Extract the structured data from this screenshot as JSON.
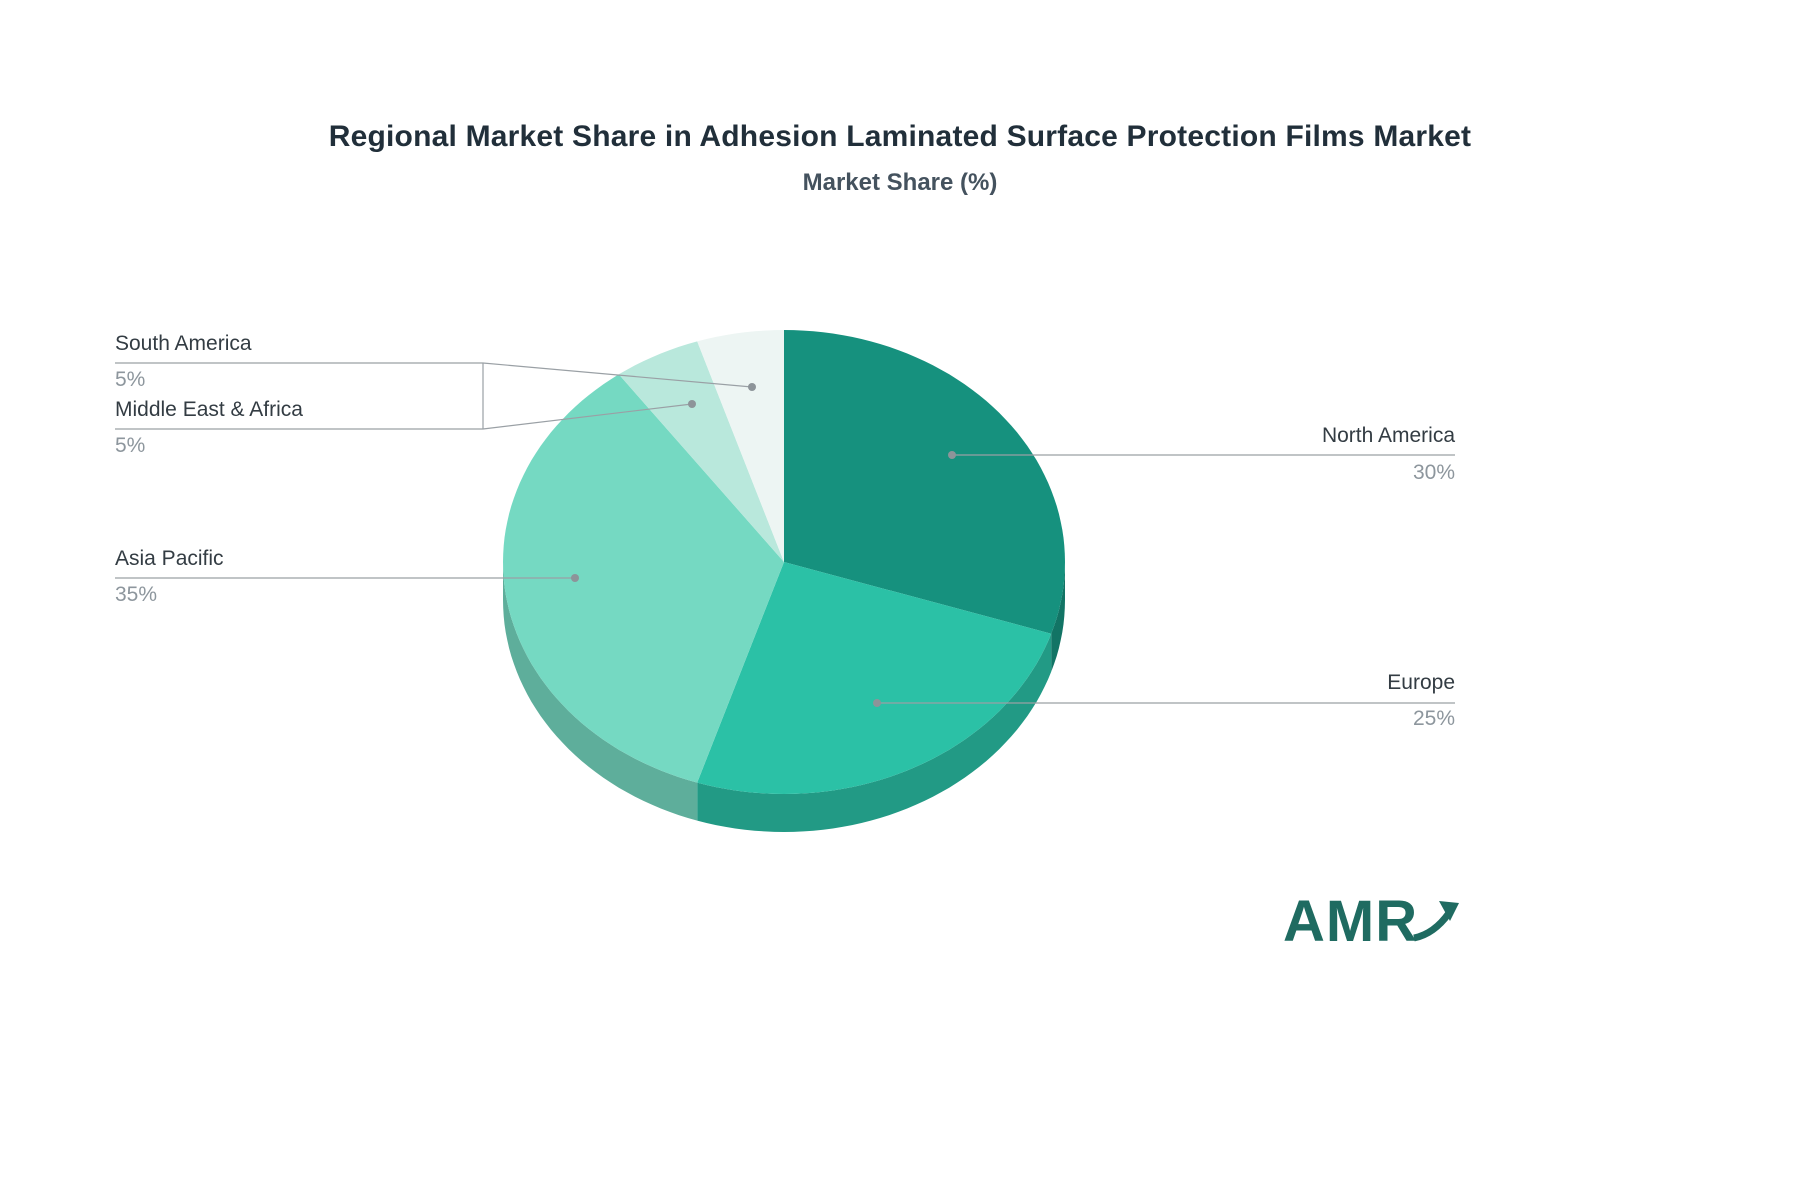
{
  "title": "Regional Market Share in Adhesion Laminated Surface Protection Films Market",
  "subtitle": "Market Share (%)",
  "logo": {
    "text": "AMR",
    "color": "#1f6b61"
  },
  "chart_data": {
    "type": "pie",
    "style": "3d",
    "title": "Regional Market Share in Adhesion Laminated Surface Protection Films Market",
    "subtitle": "Market Share (%)",
    "unit": "%",
    "start_angle_deg": 0,
    "direction": "clockwise",
    "legend": "leader-line labels",
    "segments": [
      {
        "label": "North America",
        "value": 30,
        "display": "30%",
        "color": "#16917e"
      },
      {
        "label": "Europe",
        "value": 25,
        "display": "25%",
        "color": "#2bc1a6"
      },
      {
        "label": "Asia Pacific",
        "value": 35,
        "display": "35%",
        "color": "#75d9c2"
      },
      {
        "label": "Middle East & Africa",
        "value": 5,
        "display": "5%",
        "color": "#b9e8dc"
      },
      {
        "label": "South America",
        "value": 5,
        "display": "5%",
        "color": "#edf5f3"
      }
    ]
  }
}
